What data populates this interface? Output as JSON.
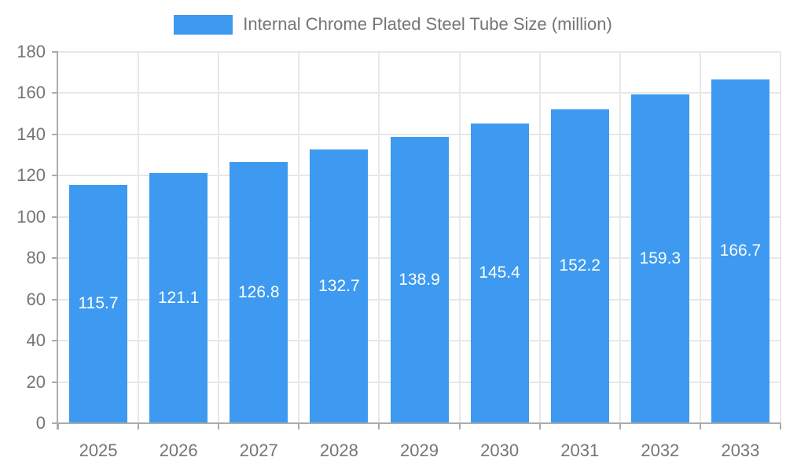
{
  "legend": {
    "label": "Internal Chrome Plated Steel Tube Size (million)"
  },
  "colors": {
    "bar": "#3d9af0",
    "bar_value_text": "#ffffff",
    "axis_text": "#757575",
    "axis_line": "#ababab",
    "grid_line": "#e8e8e8",
    "background": "#ffffff"
  },
  "chart_data": {
    "type": "bar",
    "title": "",
    "legend_entries": [
      "Internal Chrome Plated Steel Tube Size (million)"
    ],
    "legend_position": "top-center",
    "categories": [
      "2025",
      "2026",
      "2027",
      "2028",
      "2029",
      "2030",
      "2031",
      "2032",
      "2033"
    ],
    "series": [
      {
        "name": "Internal Chrome Plated Steel Tube Size (million)",
        "values": [
          115.7,
          121.1,
          126.8,
          132.7,
          138.9,
          145.4,
          152.2,
          159.3,
          166.7
        ]
      }
    ],
    "value_labels": [
      115.7,
      121.1,
      126.8,
      132.7,
      138.9,
      145.4,
      152.2,
      159.3,
      166.7
    ],
    "value_label_position": "inside-center",
    "xlabel": "",
    "ylabel": "",
    "ylim": [
      0,
      180
    ],
    "ytick_step": 20,
    "ytick_labels": [
      "0",
      "20",
      "40",
      "60",
      "80",
      "100",
      "120",
      "140",
      "160",
      "180"
    ],
    "grid": true
  }
}
